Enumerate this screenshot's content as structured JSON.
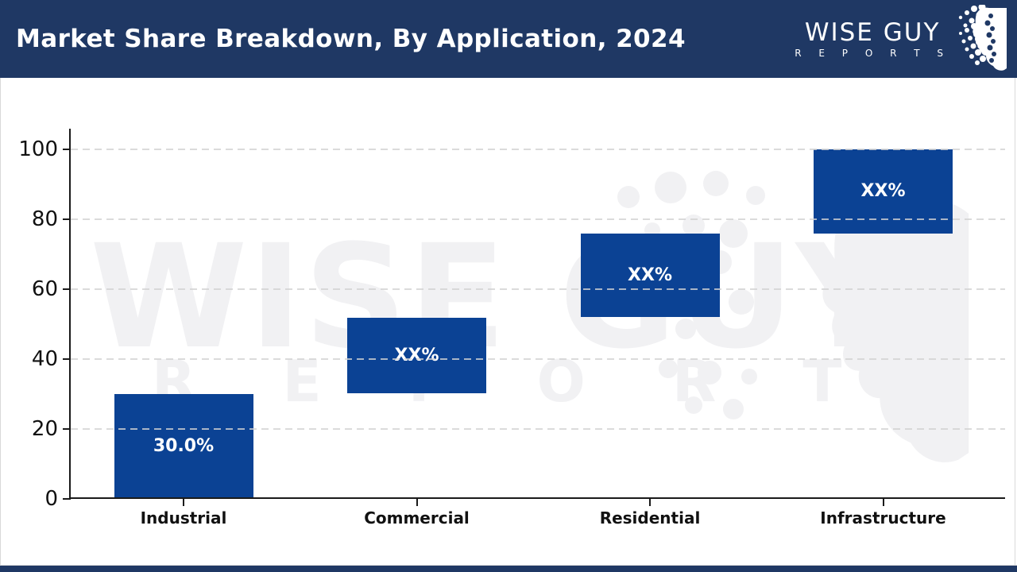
{
  "header": {
    "title": "Market Share Breakdown, By Application, 2024",
    "logo": {
      "line1": "WISE GUY",
      "line2": "R E P O R T S"
    }
  },
  "watermark": {
    "line1": "WISE GUY",
    "line2": "R E P O R T S"
  },
  "colors": {
    "header_bg": "#1F3864",
    "bar": "#0B4294",
    "bar_label": "#FFFFFF",
    "gridline": "#D2D2D2",
    "axis": "#1A1A1A",
    "watermark": "#F1F1F3",
    "page_border": "#D9D9D9"
  },
  "chart_data": {
    "type": "bar",
    "subtype": "waterfall-floating-segments",
    "title": "Market Share Breakdown, By Application, 2024",
    "categories": [
      "Industrial",
      "Commercial",
      "Residential",
      "Infrastructure"
    ],
    "segments": [
      {
        "category": "Industrial",
        "start": 0,
        "end": 30,
        "label": "30.0%"
      },
      {
        "category": "Commercial",
        "start": 30,
        "end": 51.7,
        "label": "XX%"
      },
      {
        "category": "Residential",
        "start": 52,
        "end": 75.7,
        "label": "XX%"
      },
      {
        "category": "Infrastructure",
        "start": 75.9,
        "end": 100,
        "label": "XX%"
      }
    ],
    "xlabel": "",
    "ylabel": "",
    "ylim": [
      0,
      100
    ],
    "yticks": [
      0,
      20,
      40,
      60,
      80,
      100
    ],
    "grid": "horizontal-dashed",
    "legend": "none"
  }
}
